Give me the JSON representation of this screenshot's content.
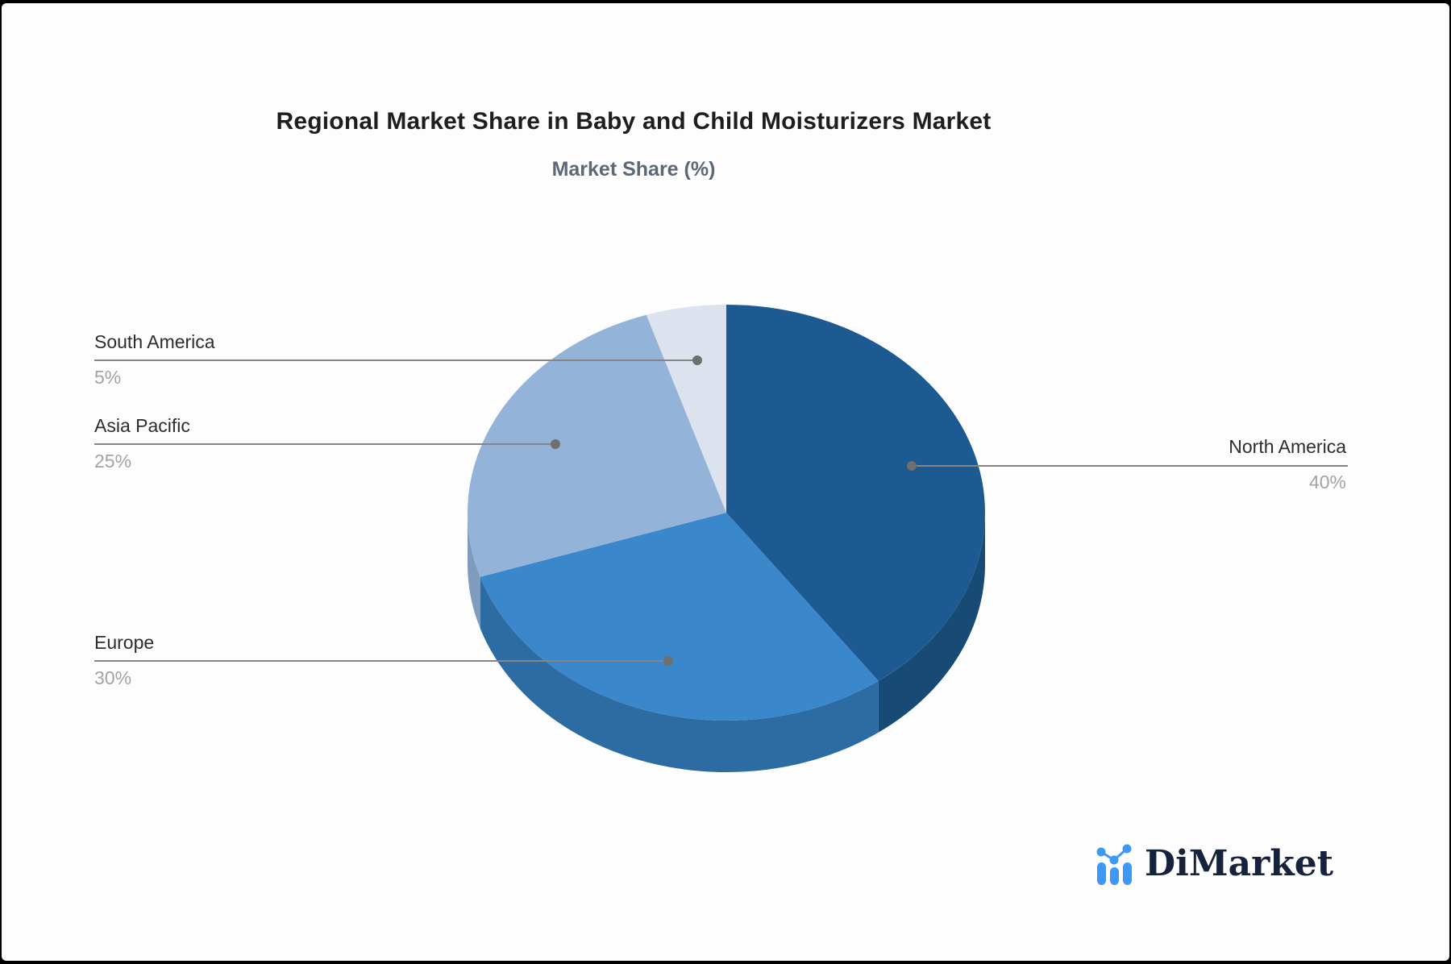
{
  "title": "Regional Market Share in Baby and Child Moisturizers Market",
  "subtitle": "Market Share (%)",
  "chart_data": {
    "type": "pie",
    "style": "3d",
    "title": "Regional Market Share in Baby and Child Moisturizers Market",
    "subtitle": "Market Share (%)",
    "unit": "%",
    "direction": "clockwise",
    "start_angle_deg": 0,
    "legend_position": "callout-leader-lines",
    "slices": [
      {
        "label": "North America",
        "value": 40,
        "pct": "40%",
        "color": "#1e5a92",
        "side_color": "#174a75"
      },
      {
        "label": "Europe",
        "value": 30,
        "pct": "30%",
        "color": "#3a87cb",
        "side_color": "#2d6ca3"
      },
      {
        "label": "Asia Pacific",
        "value": 25,
        "pct": "25%",
        "color": "#94b3d8",
        "side_color": "#7f9cbd"
      },
      {
        "label": "South America",
        "value": 5,
        "pct": "5%",
        "color": "#dde3ee"
      }
    ],
    "leader_line_color": "#858585",
    "leader_dot_color": "#6f6f6f"
  },
  "brand": {
    "name": "DiMarket",
    "icon": "bar-chart-logo-icon",
    "icon_color": "#3d99f5",
    "text_color": "#16233d"
  }
}
